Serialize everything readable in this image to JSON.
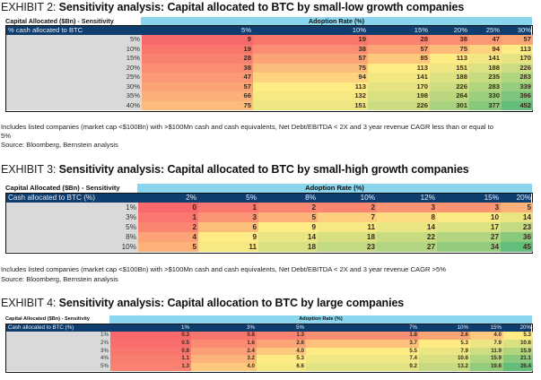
{
  "exhibits": [
    {
      "number": "EXHIBIT 2:",
      "title": "Sensitivity analysis: Capital allocated to BTC by small-low growth companies",
      "sensitivity_label": "Capital Allocated ($Bn) - Sensitivity",
      "adoption_label": "Adoption Rate (%)",
      "row_header_label": "% cash allocated to BTC",
      "columns": [
        "5%",
        "10%",
        "15%",
        "20%",
        "25%",
        "30%"
      ],
      "rows": [
        {
          "label": "5%",
          "values": [
            "9",
            "19",
            "28",
            "38",
            "47",
            "57"
          ]
        },
        {
          "label": "10%",
          "values": [
            "19",
            "38",
            "57",
            "75",
            "94",
            "113"
          ]
        },
        {
          "label": "15%",
          "values": [
            "28",
            "57",
            "85",
            "113",
            "141",
            "170"
          ]
        },
        {
          "label": "20%",
          "values": [
            "38",
            "75",
            "113",
            "151",
            "188",
            "226"
          ]
        },
        {
          "label": "25%",
          "values": [
            "47",
            "94",
            "141",
            "188",
            "235",
            "283"
          ]
        },
        {
          "label": "30%",
          "values": [
            "57",
            "113",
            "170",
            "226",
            "283",
            "339"
          ]
        },
        {
          "label": "35%",
          "values": [
            "66",
            "132",
            "198",
            "264",
            "330",
            "396"
          ]
        },
        {
          "label": "40%",
          "values": [
            "75",
            "151",
            "226",
            "301",
            "377",
            "452"
          ]
        }
      ],
      "notes": [
        "Includes listed companies (market cap <$100Bn) with >$100Mn cash and cash equivalents, Net Debt/EBITDA < 2X and 3 year revenue CAGR less than or equal to",
        "5%",
        "Source: Bloomberg, Bernstein analysis"
      ]
    },
    {
      "number": "EXHIBIT 3:",
      "title": "Sensitivity analysis: Capital allocated to BTC by small-high growth companies",
      "sensitivity_label": "Capital Allocated ($Bn) - Sensitivity",
      "adoption_label": "Adoption Rate (%)",
      "row_header_label": "Cash allocated to BTC (%)",
      "columns": [
        "2%",
        "5%",
        "8%",
        "10%",
        "12%",
        "15%",
        "20%"
      ],
      "rows": [
        {
          "label": "1%",
          "values": [
            "0",
            "1",
            "2",
            "2",
            "3",
            "3",
            "5"
          ]
        },
        {
          "label": "3%",
          "values": [
            "1",
            "3",
            "5",
            "7",
            "8",
            "10",
            "14"
          ]
        },
        {
          "label": "5%",
          "values": [
            "2",
            "6",
            "9",
            "11",
            "14",
            "17",
            "23"
          ]
        },
        {
          "label": "8%",
          "values": [
            "4",
            "9",
            "14",
            "18",
            "22",
            "27",
            "36"
          ]
        },
        {
          "label": "10%",
          "values": [
            "5",
            "11",
            "18",
            "23",
            "27",
            "34",
            "45"
          ]
        }
      ],
      "notes": [
        "Includes listed companies (market cap <$100Bn) with >$100Mn cash and cash equivalents, Net Debt/EBITDA < 2X and 3 year revenue CAGR >5%",
        "Source: Bloomberg, Bernstein analysis"
      ]
    },
    {
      "number": "EXHIBIT 4:",
      "title": "Sensitivity analysis: Capital allocation to BTC by large companies",
      "sensitivity_label": "Capital Allocated ($Bn) - Sensitivity",
      "adoption_label": "Adoption Rate (%)",
      "row_header_label": "Cash allocated to BTC (%)",
      "columns": [
        "1%",
        "3%",
        "5%",
        "7%",
        "10%",
        "15%",
        "20%"
      ],
      "rows": [
        {
          "label": "1%",
          "values": [
            "0.3",
            "0.8",
            "1.3",
            "1.8",
            "2.6",
            "4.0",
            "5.3"
          ]
        },
        {
          "label": "2%",
          "values": [
            "0.5",
            "1.6",
            "2.6",
            "3.7",
            "5.3",
            "7.9",
            "10.6"
          ]
        },
        {
          "label": "3%",
          "values": [
            "0.8",
            "2.4",
            "4.0",
            "5.5",
            "7.9",
            "11.9",
            "15.9"
          ]
        },
        {
          "label": "4%",
          "values": [
            "1.1",
            "3.2",
            "5.3",
            "7.4",
            "10.6",
            "15.9",
            "21.1"
          ]
        },
        {
          "label": "5%",
          "values": [
            "1.3",
            "4.0",
            "6.6",
            "9.2",
            "13.2",
            "19.8",
            "26.4"
          ]
        }
      ],
      "notes": []
    }
  ],
  "colors": {
    "scale_low": "#f8696b",
    "scale_mid": "#ffeb84",
    "scale_high": "#63be7b",
    "header_navy": "#0f3d6e",
    "adoption_bar": "#8ad6ee",
    "row_label_bg": "#d9d9d9"
  }
}
